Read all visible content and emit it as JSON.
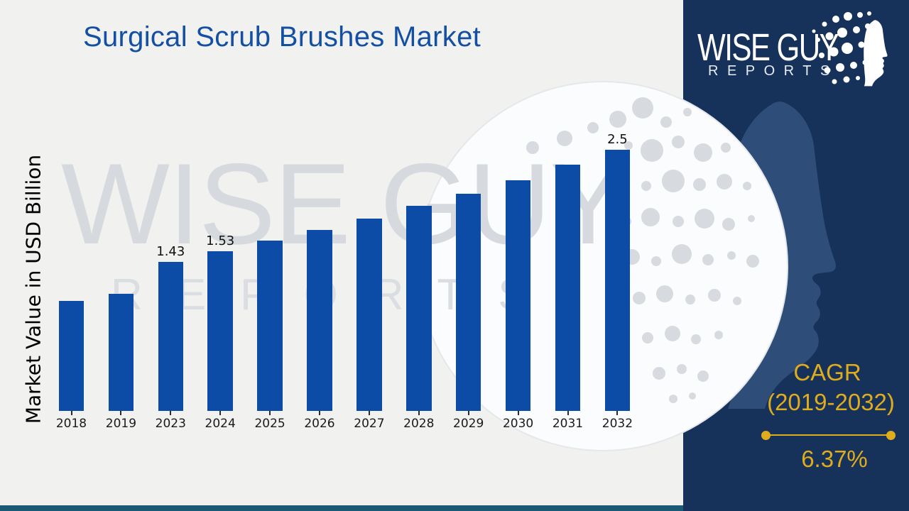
{
  "title": "Surgical Scrub Brushes Market",
  "watermark": {
    "line1": "WISE GUY",
    "line2": "REPORTS"
  },
  "brand": {
    "line1": "WISE GUY",
    "line2": "REPORTS"
  },
  "cagr": {
    "label": "CAGR",
    "range": "(2019-2032)",
    "value": "6.37%"
  },
  "chart_data": {
    "type": "bar",
    "title": "Surgical Scrub Brushes Market",
    "xlabel": "",
    "ylabel": "Market Value in USD Billion",
    "categories": [
      "2018",
      "2019",
      "2023",
      "2024",
      "2025",
      "2026",
      "2027",
      "2028",
      "2029",
      "2030",
      "2031",
      "2032"
    ],
    "values": [
      1.05,
      1.12,
      1.43,
      1.53,
      1.63,
      1.73,
      1.84,
      1.96,
      2.08,
      2.21,
      2.36,
      2.5
    ],
    "data_labels": [
      "",
      "",
      "1.43",
      "1.53",
      "",
      "",
      "",
      "",
      "",
      "",
      "",
      "2.5"
    ],
    "ylim": [
      0,
      2.75
    ],
    "grid": false,
    "legend": false,
    "bar_color": "#0d4ca6"
  },
  "colors": {
    "background": "#f1f1ef",
    "panel_navy": "#16325b",
    "bulge_white": "#fbfcfd",
    "face_navy": "#2f4d79",
    "bar_blue": "#0d4ca6",
    "title_blue": "#134fa2",
    "gold": "#dfac1c",
    "teal_strip": "#1a5a74",
    "watermark_gray": "#d6d9de",
    "dot_gray": "#d7dade"
  }
}
